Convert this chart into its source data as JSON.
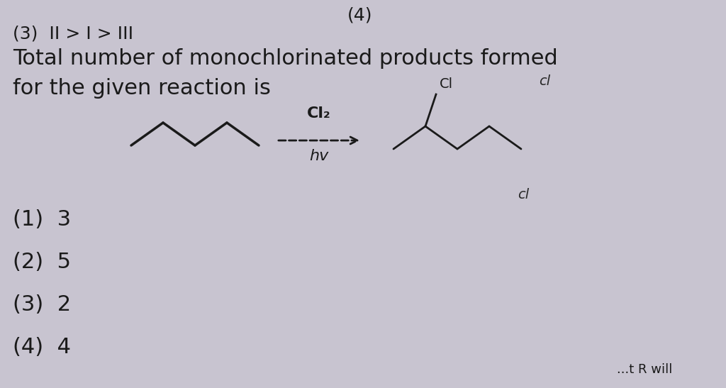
{
  "background_color": "#c8c4d0",
  "top_left_text": "(3)  II > I > III",
  "top_right_text": "(4)",
  "question_line1": "Total number of monochlorinated products formed",
  "question_line2": "for the given reaction is",
  "reagent_above": "Cl₂",
  "reagent_below": "hv",
  "options": [
    "(1)  3",
    "(2)  5",
    "(3)  2",
    "(4)  4"
  ],
  "bottom_right_text": "...t R will",
  "text_color": "#1a1a1a",
  "font_size_main": 22,
  "font_size_options": 22,
  "font_size_top": 18,
  "font_size_reagent": 16
}
